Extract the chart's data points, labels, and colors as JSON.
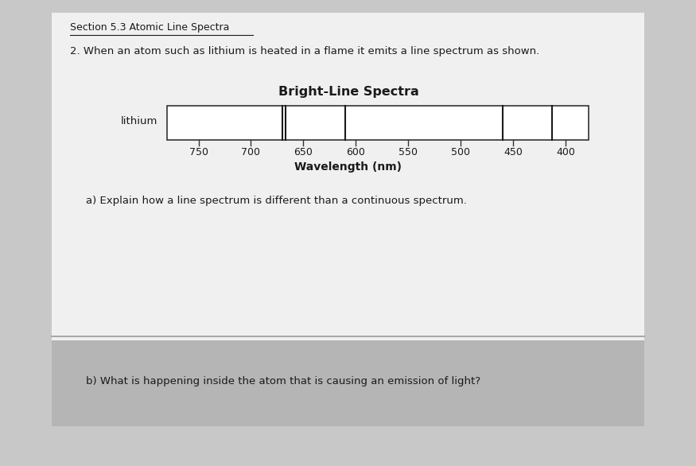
{
  "title": "Bright-Line Spectra",
  "xlabel": "Wavelength (nm)",
  "section_header": "Section 5.3 Atomic Line Spectra",
  "question_text": "2. When an atom such as lithium is heated in a flame it emits a line spectrum as shown.",
  "question_a": "a) Explain how a line spectrum is different than a continuous spectrum.",
  "question_b": "b) What is happening inside the atom that is causing an emission of light?",
  "row_label": "lithium",
  "x_ticks": [
    750,
    700,
    650,
    600,
    550,
    500,
    450,
    400
  ],
  "x_min": 780,
  "x_max": 378,
  "spectrum_lines": [
    670,
    667,
    610,
    460,
    413
  ],
  "line_color": "#1a1a1a",
  "bg_color": "#c8c8c8",
  "white_area_color": "#f0f0f0",
  "gray_bottom_color": "#b5b5b5",
  "text_color": "#1a1a1a",
  "figsize": [
    8.75,
    5.86
  ],
  "dpi": 100
}
